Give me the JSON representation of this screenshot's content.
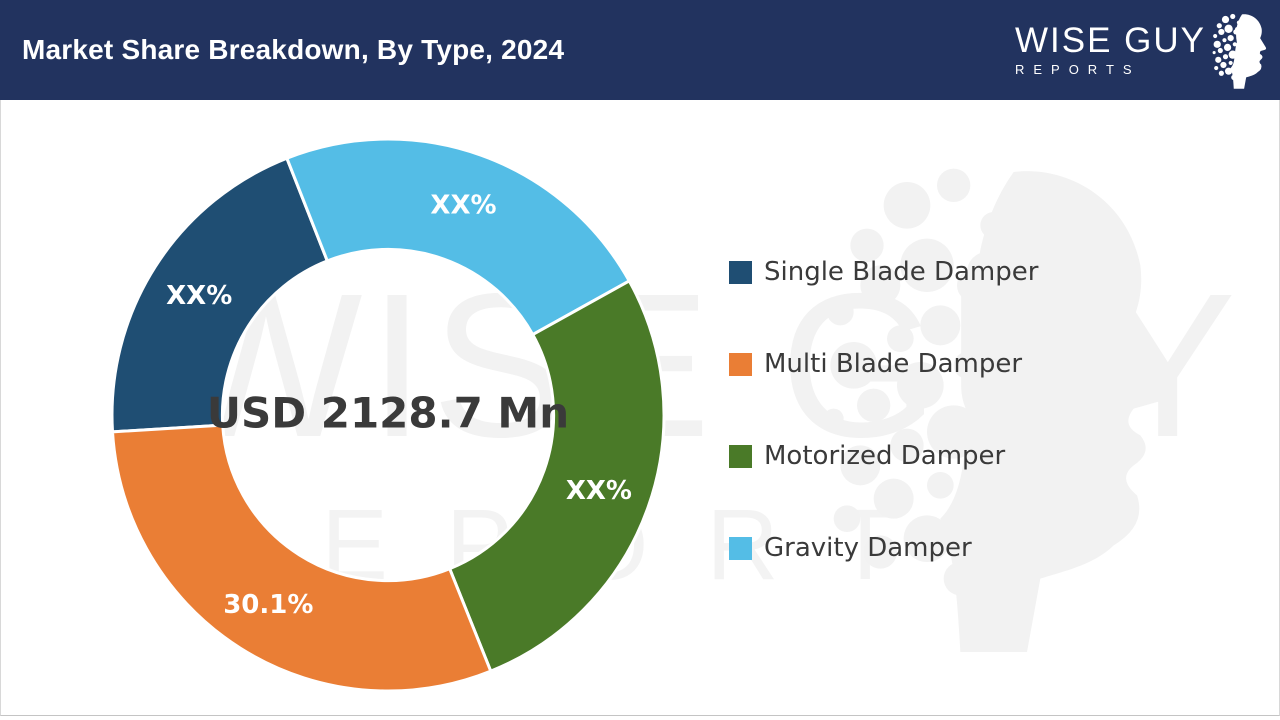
{
  "header": {
    "title": "Market Share Breakdown, By Type, 2024",
    "bg_color": "#22335F"
  },
  "logo": {
    "line1": "WISE GUY",
    "line2": "REPORTS"
  },
  "watermark": {
    "line1": "WISE GUY",
    "line2": "REPORTS"
  },
  "chart_data": {
    "type": "pie",
    "subtype": "donut",
    "title": "Market Share Breakdown, By Type, 2024",
    "center_label": "USD 2128.7 Mn",
    "start_angle_deg": 183.5,
    "direction": "clockwise",
    "inner_radius_ratio": 0.6,
    "legend_position": "right",
    "slices": [
      {
        "name": "Single Blade Damper",
        "value_pct": 20.0,
        "label": "XX%",
        "color": "#1F4E73"
      },
      {
        "name": "Gravity Damper",
        "value_pct": 22.9,
        "label": "XX%",
        "color": "#54BDE6"
      },
      {
        "name": "Motorized Damper",
        "value_pct": 27.0,
        "label": "XX%",
        "color": "#4A7A28"
      },
      {
        "name": "Multi Blade Damper",
        "value_pct": 30.1,
        "label": "30.1%",
        "color": "#EA7E35"
      }
    ],
    "legend_items": [
      {
        "label": "Single Blade Damper",
        "color": "#1F4E73"
      },
      {
        "label": "Multi Blade Damper",
        "color": "#EA7E35"
      },
      {
        "label": "Motorized Damper",
        "color": "#4A7A28"
      },
      {
        "label": "Gravity Damper",
        "color": "#54BDE6"
      }
    ]
  }
}
